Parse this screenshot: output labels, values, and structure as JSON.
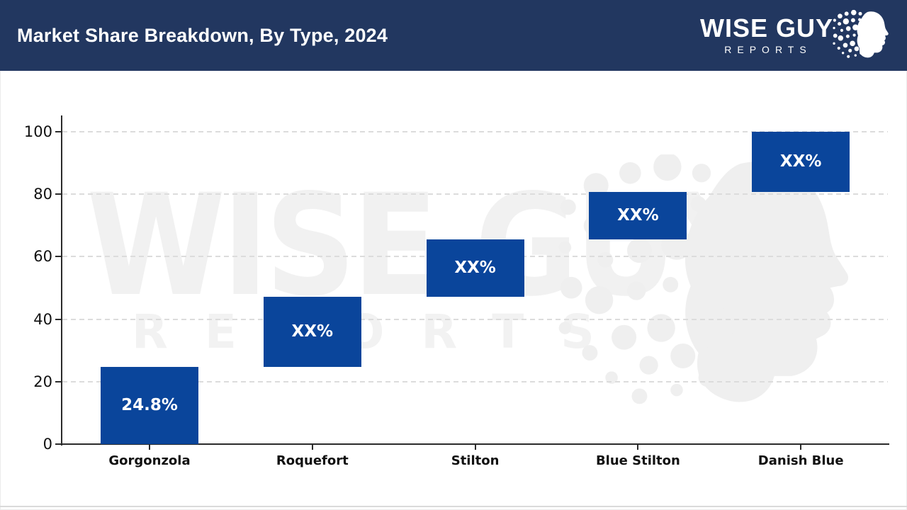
{
  "header": {
    "title": "Market Share Breakdown, By Type, 2024",
    "logo": {
      "wordmark": "WISE GUY",
      "subtext": "REPORTS"
    }
  },
  "watermark": {
    "wordmark": "WISE GUY",
    "subtext": "REPORTS"
  },
  "chart_data": {
    "type": "bar",
    "subtype": "floating-waterfall",
    "title": "Market Share Breakdown, By Type, 2024",
    "categories": [
      "Gorgonzola",
      "Roquefort",
      "Stilton",
      "Blue Stilton",
      "Danish Blue"
    ],
    "bars": [
      {
        "category": "Gorgonzola",
        "start": 0,
        "end": 24.8,
        "label": "24.8%"
      },
      {
        "category": "Roquefort",
        "start": 24.8,
        "end": 47.2,
        "label": "XX%"
      },
      {
        "category": "Stilton",
        "start": 47.2,
        "end": 65.6,
        "label": "XX%"
      },
      {
        "category": "Blue Stilton",
        "start": 65.6,
        "end": 80.8,
        "label": "XX%"
      },
      {
        "category": "Danish Blue",
        "start": 80.8,
        "end": 100,
        "label": "XX%"
      }
    ],
    "yticks": [
      0,
      20,
      40,
      60,
      80,
      100
    ],
    "ylim": [
      0,
      105
    ],
    "xlabel": "",
    "ylabel": "",
    "grid": "horizontal-dashed",
    "legend": null,
    "bar_color": "#0a459b",
    "bar_label_color": "#ffffff"
  }
}
